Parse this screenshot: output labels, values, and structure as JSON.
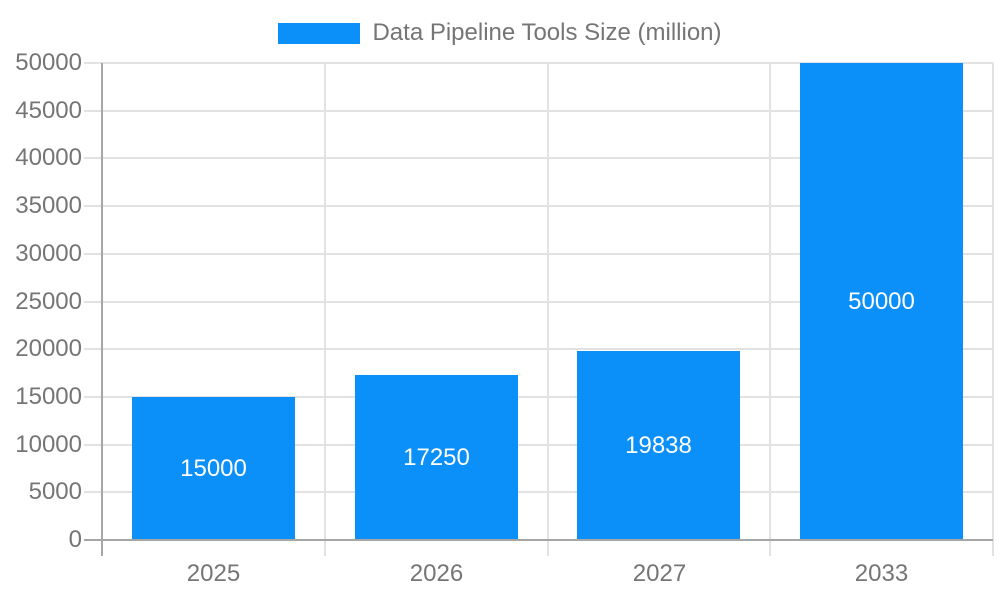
{
  "legend": {
    "label": "Data Pipeline Tools Size (million)"
  },
  "colors": {
    "bar": "#0b8ff8",
    "grid": "#e2e2e2",
    "axis": "#a6a6a6",
    "label": "#757575",
    "bar_label": "#ffffff",
    "background": "#ffffff"
  },
  "chart_data": {
    "type": "bar",
    "title": "Data Pipeline Tools Size (million)",
    "categories": [
      "2025",
      "2026",
      "2027",
      "2033"
    ],
    "values": [
      15000,
      17250,
      19838,
      50000
    ],
    "bar_value_labels": [
      "15000",
      "17250",
      "19838",
      "50000"
    ],
    "yticks": [
      0,
      5000,
      10000,
      15000,
      20000,
      25000,
      30000,
      35000,
      40000,
      45000,
      50000
    ],
    "ylim": [
      0,
      50000
    ],
    "xlabel": "",
    "ylabel": "",
    "grid": true,
    "legend_position": "top-center",
    "bar_label_position": "center-inside"
  }
}
